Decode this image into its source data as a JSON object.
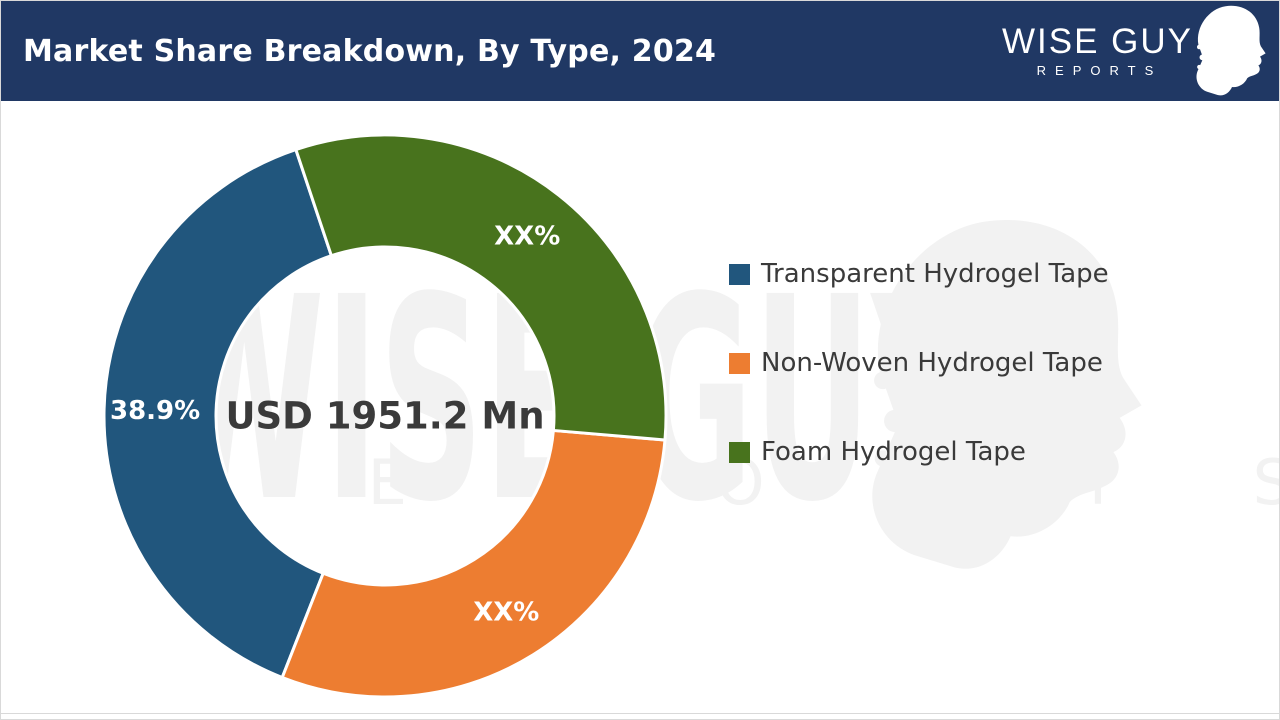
{
  "header": {
    "title": "Market Share Breakdown, By Type, 2024",
    "logo": {
      "name": "WISE GUY",
      "tagline": "REPORTS"
    }
  },
  "watermark": {
    "line1": "WISE GUY",
    "line2": "R E P O R T S"
  },
  "chart_data": {
    "type": "donut",
    "title": "Market Share Breakdown, By Type, 2024",
    "center_label": "USD 1951.2 Mn",
    "start_angle_deg": 108.5,
    "direction": "counterclockwise",
    "inner_radius_ratio": 0.6,
    "legend_position": "right",
    "grid": false,
    "segments": [
      {
        "label": "Transparent Hydrogel Tape",
        "value_pct": 38.9,
        "display_label": "38.9%",
        "color": "#21567D"
      },
      {
        "label": "Non-Woven Hydrogel Tape",
        "value_pct": 29.6,
        "display_label": "XX%",
        "color": "#ED7D31"
      },
      {
        "label": "Foam Hydrogel Tape",
        "value_pct": 31.5,
        "display_label": "XX%",
        "color": "#48731D"
      }
    ]
  },
  "colors": {
    "header_bg": "#203864",
    "legend_text": "#3A3A3A",
    "center_text": "#3A3A3A",
    "watermark": "#F2F2F2",
    "border": "#D9D9D9",
    "label_text": "#FFFFFF"
  }
}
